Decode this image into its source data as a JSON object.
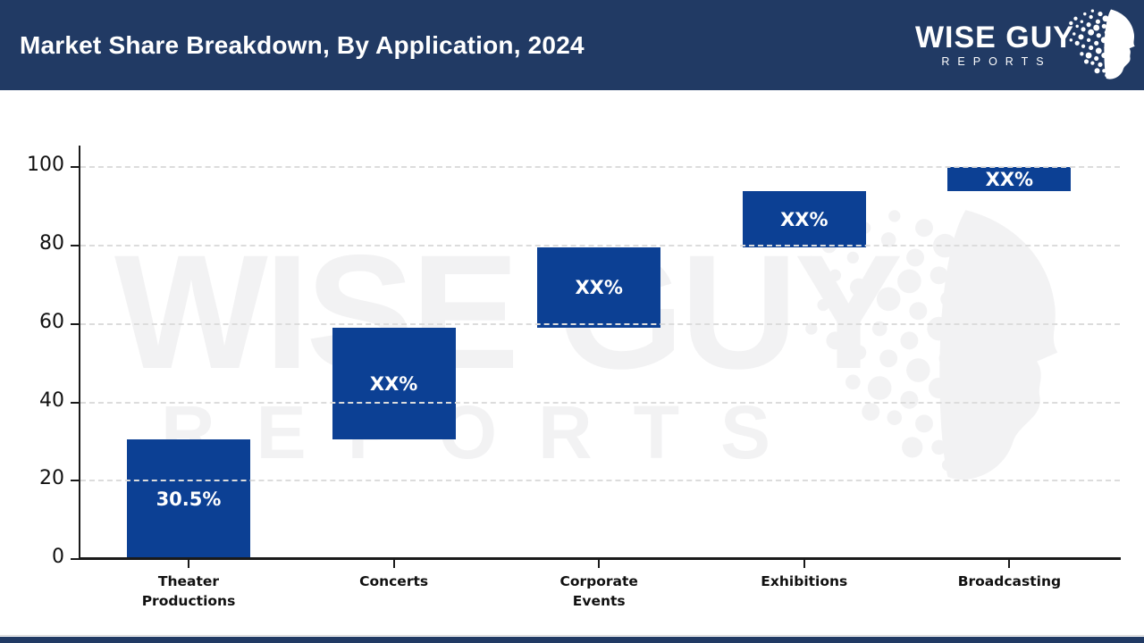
{
  "header": {
    "title": "Market Share Breakdown, By Application, 2024",
    "logo": {
      "name": "WISE GUY",
      "tagline": "REPORTS"
    }
  },
  "watermark": {
    "line1": "WISE GUY",
    "line2": "REPORTS"
  },
  "chart_data": {
    "type": "bar",
    "subtype": "waterfall",
    "title": "Market Share Breakdown, By Application, 2024",
    "categories": [
      "Theater Productions",
      "Concerts",
      "Corporate Events",
      "Exhibitions",
      "Broadcasting"
    ],
    "bars": [
      {
        "category": "Theater Productions",
        "start": 0,
        "end": 30.5,
        "label": "30.5%"
      },
      {
        "category": "Concerts",
        "start": 30.5,
        "end": 59,
        "label": "XX%"
      },
      {
        "category": "Corporate Events",
        "start": 59,
        "end": 79.5,
        "label": "XX%"
      },
      {
        "category": "Exhibitions",
        "start": 79.5,
        "end": 94,
        "label": "XX%"
      },
      {
        "category": "Broadcasting",
        "start": 94,
        "end": 100,
        "label": "XX%"
      }
    ],
    "yticks": [
      0,
      20,
      40,
      60,
      80,
      100
    ],
    "ylim": [
      0,
      105.6
    ],
    "xlabel": "",
    "ylabel": "",
    "legend": "none",
    "grid": "horizontal-dashed-above-bars",
    "colors": {
      "bar": "#0C4094",
      "bar_label": "#FFFFFF",
      "grid": "#DCDCDC",
      "axis": "#1A1A1A",
      "header_bg": "#213A64",
      "watermark": "#F2F2F3"
    }
  }
}
